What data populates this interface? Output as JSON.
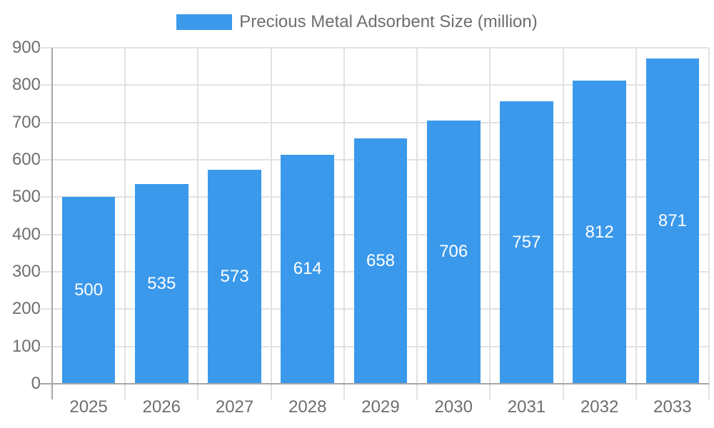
{
  "legend": {
    "label": "Precious Metal Adsorbent Size (million)"
  },
  "colors": {
    "bar": "#3B99EC",
    "grid": "#E2E2E2",
    "axis": "#A6A6A6",
    "tick_text": "#6E6E6E",
    "value_text": "#FFFFFF",
    "background": "#FFFFFF"
  },
  "chart_data": {
    "type": "bar",
    "title": "Precious Metal Adsorbent Size (million)",
    "categories": [
      "2025",
      "2026",
      "2027",
      "2028",
      "2029",
      "2030",
      "2031",
      "2032",
      "2033"
    ],
    "values": [
      500,
      535,
      573,
      614,
      658,
      706,
      757,
      812,
      871
    ],
    "xlabel": "",
    "ylabel": "",
    "ylim": [
      0,
      900
    ],
    "yticks": [
      0,
      100,
      200,
      300,
      400,
      500,
      600,
      700,
      800,
      900
    ],
    "grid": true,
    "bar_labels": true,
    "legend_position": "top"
  }
}
